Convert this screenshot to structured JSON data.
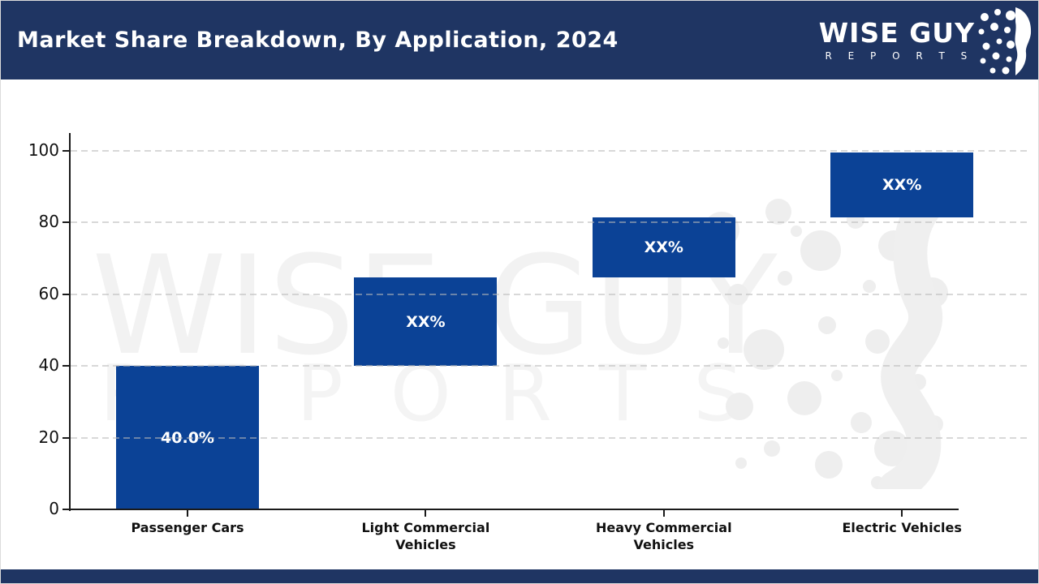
{
  "header": {
    "title": "Market Share Breakdown, By Application, 2024",
    "logo": {
      "line1": "WISE GUY",
      "line2": "R E P O R T S"
    }
  },
  "watermark": {
    "line1": "WISE GUY",
    "line2": "R E P O R T S"
  },
  "chart_data": {
    "type": "bar",
    "subtype": "stepped-waterfall",
    "title": "Market Share Breakdown, By Application, 2024",
    "categories": [
      "Passenger Cars",
      "Light Commercial\nVehicles",
      "Heavy Commercial\nVehicles",
      "Electric Vehicles"
    ],
    "bars": [
      {
        "category": "Passenger Cars",
        "start": 0,
        "end": 40,
        "label": "40.0%"
      },
      {
        "category": "Light Commercial Vehicles",
        "start": 40,
        "end": 64.6,
        "label": "XX%"
      },
      {
        "category": "Heavy Commercial Vehicles",
        "start": 64.6,
        "end": 81.4,
        "label": "XX%"
      },
      {
        "category": "Electric Vehicles",
        "start": 81.4,
        "end": 99.5,
        "label": "XX%"
      }
    ],
    "yticks": [
      0,
      20,
      40,
      60,
      80,
      100
    ],
    "ylim": [
      0,
      105
    ],
    "xlabel": "",
    "ylabel": "",
    "grid": {
      "axis": "y",
      "style": "dashed",
      "on_top_of_bars": true
    },
    "legend": "none",
    "bar_color": "#0b4296",
    "bar_label_color": "#ffffff"
  },
  "colors": {
    "header_navy": "#1f3563",
    "footer_navy": "#1f3563",
    "bar_blue": "#0b4296",
    "axis_black": "#1a1a1a",
    "gridline_gray": "#b9b9b9",
    "watermark_gray": "#f2f2f2",
    "background": "#ffffff"
  }
}
